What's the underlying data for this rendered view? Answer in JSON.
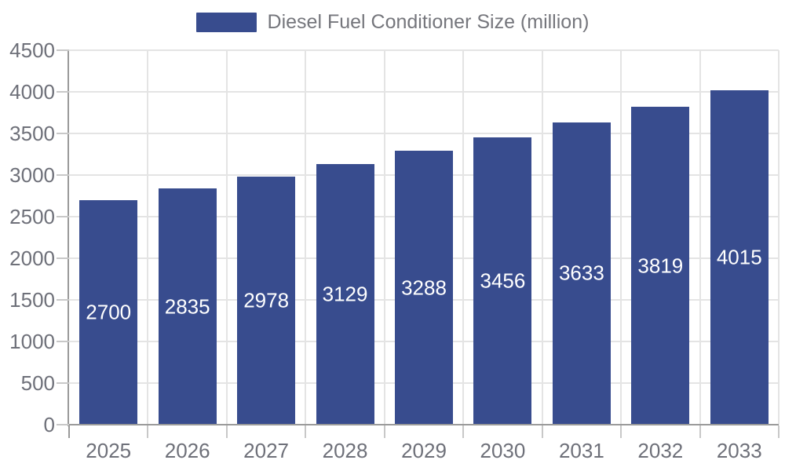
{
  "chart_data": {
    "type": "bar",
    "title": "",
    "legend_label": "Diesel Fuel Conditioner Size (million)",
    "legend_position": "top-center",
    "categories": [
      "2025",
      "2026",
      "2027",
      "2028",
      "2029",
      "2030",
      "2031",
      "2032",
      "2033"
    ],
    "values": [
      2700,
      2835,
      2978,
      3129,
      3288,
      3456,
      3633,
      3819,
      4015
    ],
    "xlabel": "",
    "ylabel": "",
    "ylim": [
      0,
      4500
    ],
    "ytick_step": 500,
    "ytick_labels": [
      "0",
      "500",
      "1000",
      "1500",
      "2000",
      "2500",
      "3000",
      "3500",
      "4000",
      "4500"
    ],
    "grid": true,
    "bar_value_labels_visible": true,
    "colors": {
      "bar": "#384C8E",
      "bar_label": "#FFFFFF",
      "axis_label": "#6E7079",
      "legend_text": "#75767C",
      "axis_line": "#9A9A9A",
      "gridline": "#E4E4E4",
      "tick": "#C8C8C8",
      "background": "#FFFFFF"
    }
  }
}
